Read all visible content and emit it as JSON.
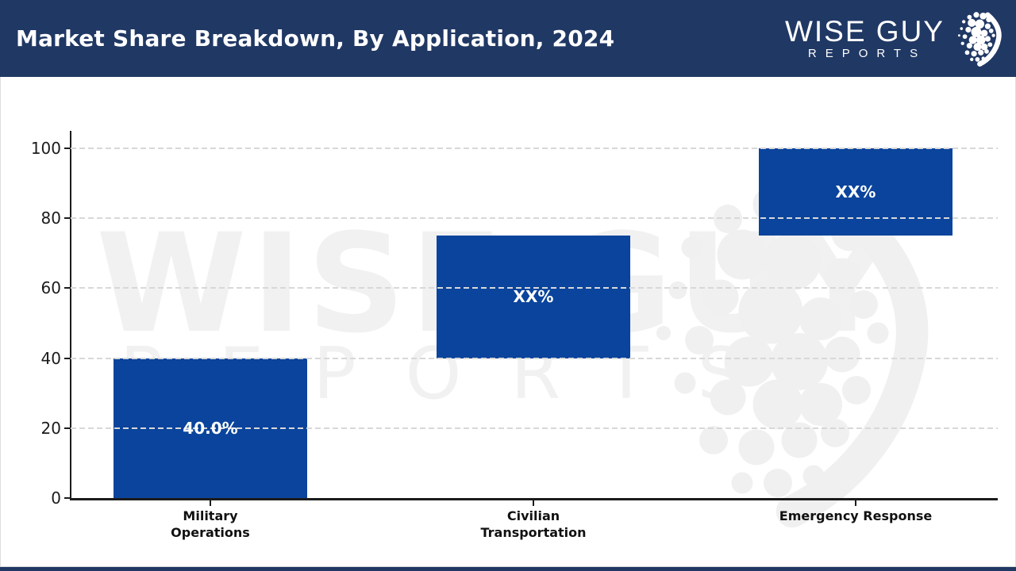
{
  "header": {
    "title": "Market Share Breakdown, By Application, 2024",
    "logo": {
      "line1": "WISE GUY",
      "line2": "REPORTS"
    }
  },
  "watermark": {
    "line1": "WISE GUY",
    "line2": "REPORTS"
  },
  "colors": {
    "header_bg": "#203864",
    "bar": "#0a449c",
    "grid": "#d8d8d8",
    "axis": "#1c1c1c",
    "watermark": "#f1f1f1",
    "figure_bg": "#ffffff"
  },
  "chart_data": {
    "type": "bar",
    "variant": "floating-segment-breakdown",
    "title": "Market Share Breakdown, By Application, 2024",
    "categories": [
      "Military\nOperations",
      "Civilian\nTransportation",
      "Emergency Response"
    ],
    "segments": [
      {
        "category": "Military Operations",
        "start": 0,
        "end": 40,
        "label": "40.0%"
      },
      {
        "category": "Civilian Transportation",
        "start": 40,
        "end": 75,
        "label": "XX%"
      },
      {
        "category": "Emergency Response",
        "start": 75,
        "end": 100,
        "label": "XX%"
      }
    ],
    "xlabel": "",
    "ylabel": "",
    "yticks": [
      0,
      20,
      40,
      60,
      80,
      100
    ],
    "ylim": [
      0,
      105
    ],
    "grid": "horizontal-dashed",
    "legend": "none",
    "bar_color": "#0a449c",
    "bar_label_color": "#ffffff"
  }
}
